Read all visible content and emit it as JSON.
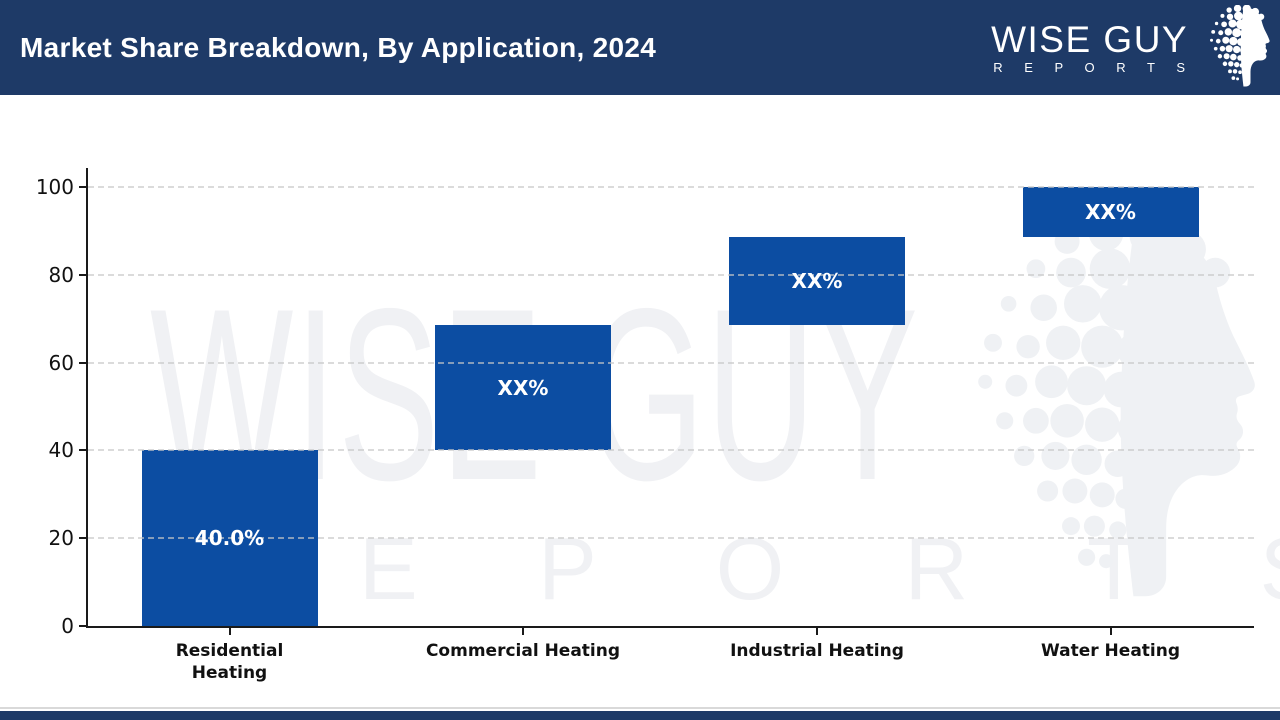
{
  "header": {
    "title": "Market Share Breakdown, By Application, 2024",
    "bg_color": "#1e3a67",
    "logo": {
      "line1": "WISE GUY",
      "line2": "R E P O R T S"
    }
  },
  "watermark": {
    "line1": "WISE GUY",
    "line2": "R E P O R T S",
    "color": "#f0f1f4"
  },
  "footer": {
    "bg_color": "#1e3a67"
  },
  "chart_data": {
    "type": "bar",
    "subtype": "waterfall",
    "title": "Market Share Breakdown, By Application, 2024",
    "categories": [
      "Residential\nHeating",
      "Commercial Heating",
      "Industrial Heating",
      "Water Heating"
    ],
    "segments": [
      40.0,
      28.5,
      20.0,
      11.5
    ],
    "cumulative_start": [
      0.0,
      40.0,
      68.5,
      88.5
    ],
    "cumulative_end": [
      40.0,
      68.5,
      88.5,
      100.0
    ],
    "bar_labels": [
      "40.0%",
      "XX%",
      "XX%",
      "XX%"
    ],
    "yticks": [
      0,
      20,
      40,
      60,
      80,
      100
    ],
    "ylim": [
      0,
      104.3
    ],
    "xlabel": "",
    "ylabel": "",
    "grid": "horizontal-dashed",
    "legend": "none",
    "bar_color": "#0c4da2",
    "grid_color": "#c8c8c8",
    "label_color": "#ffffff"
  }
}
